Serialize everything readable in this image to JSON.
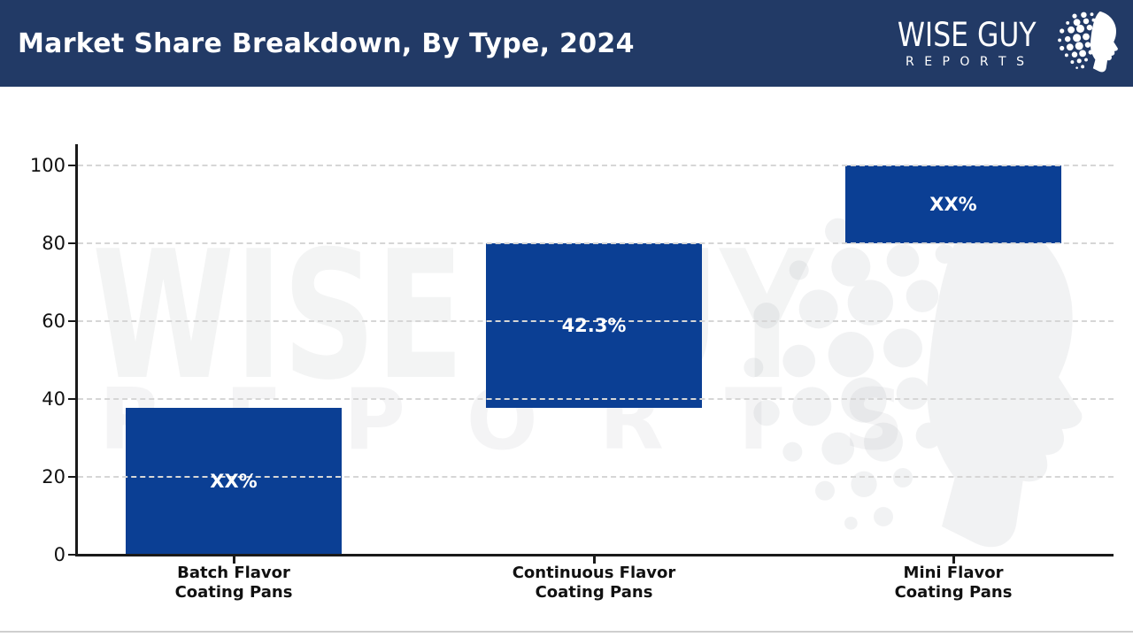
{
  "header": {
    "title": "Market Share Breakdown, By Type, 2024",
    "bg_color": "#223A66",
    "logo_line1": "WISE GUY",
    "logo_line2": "R E P O R T S"
  },
  "watermark": {
    "line1": "WISE GUY",
    "line2": "R E P O R T S"
  },
  "chart_data": {
    "type": "bar",
    "subtype": "waterfall",
    "title": "Market Share Breakdown, By Type, 2024",
    "categories": [
      [
        "Batch Flavor",
        "Coating Pans"
      ],
      [
        "Continuous Flavor",
        "Coating Pans"
      ],
      [
        "Mini Flavor",
        "Coating Pans"
      ]
    ],
    "segments": [
      {
        "category": "Batch Flavor Coating Pans",
        "start": 0,
        "end": 37.7,
        "label": "XX%"
      },
      {
        "category": "Continuous Flavor Coating Pans",
        "start": 37.7,
        "end": 80,
        "label": "42.3%"
      },
      {
        "category": "Mini Flavor Coating Pans",
        "start": 80,
        "end": 100,
        "label": "XX%"
      }
    ],
    "yticks": [
      0,
      20,
      40,
      60,
      80,
      100
    ],
    "ylim": [
      0,
      105.5
    ],
    "xlabel": "",
    "ylabel": "",
    "grid": "horizontal-dashed",
    "legend_position": "none",
    "bar_color": "#0B3F94",
    "value_label_color": "#FFFFFF",
    "axis_color": "#1A1A1A",
    "gridline_color": "#D6D6D6"
  }
}
